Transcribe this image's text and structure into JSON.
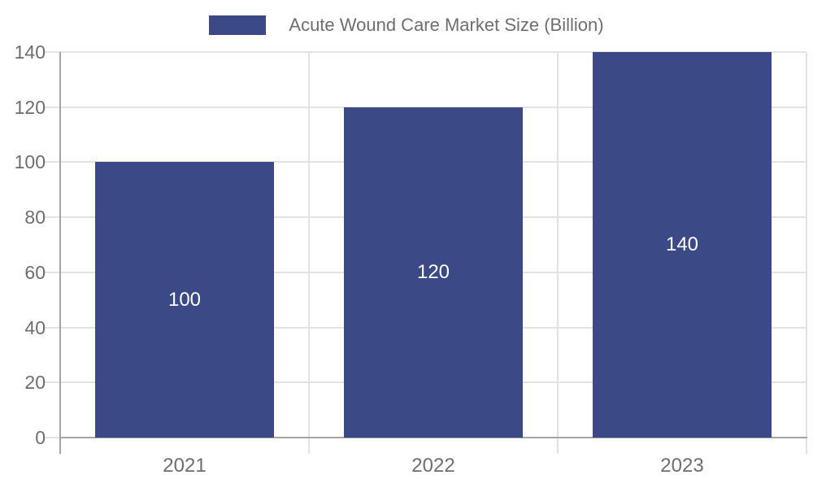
{
  "chart_data": {
    "type": "bar",
    "title": "Acute Wound Care Market Size (Billion)",
    "categories": [
      "2021",
      "2022",
      "2023"
    ],
    "values": [
      100,
      120,
      140
    ],
    "series_name": "Acute Wound Care Market Size (Billion)",
    "xlabel": "",
    "ylabel": "",
    "ylim": [
      0,
      140
    ],
    "yticks": [
      0,
      20,
      40,
      60,
      80,
      100,
      120,
      140
    ],
    "grid": true,
    "legend_position": "top-center",
    "bar_color": "#3b4a86",
    "value_label_color": "#ffffff",
    "value_label_position": "inside-center"
  }
}
